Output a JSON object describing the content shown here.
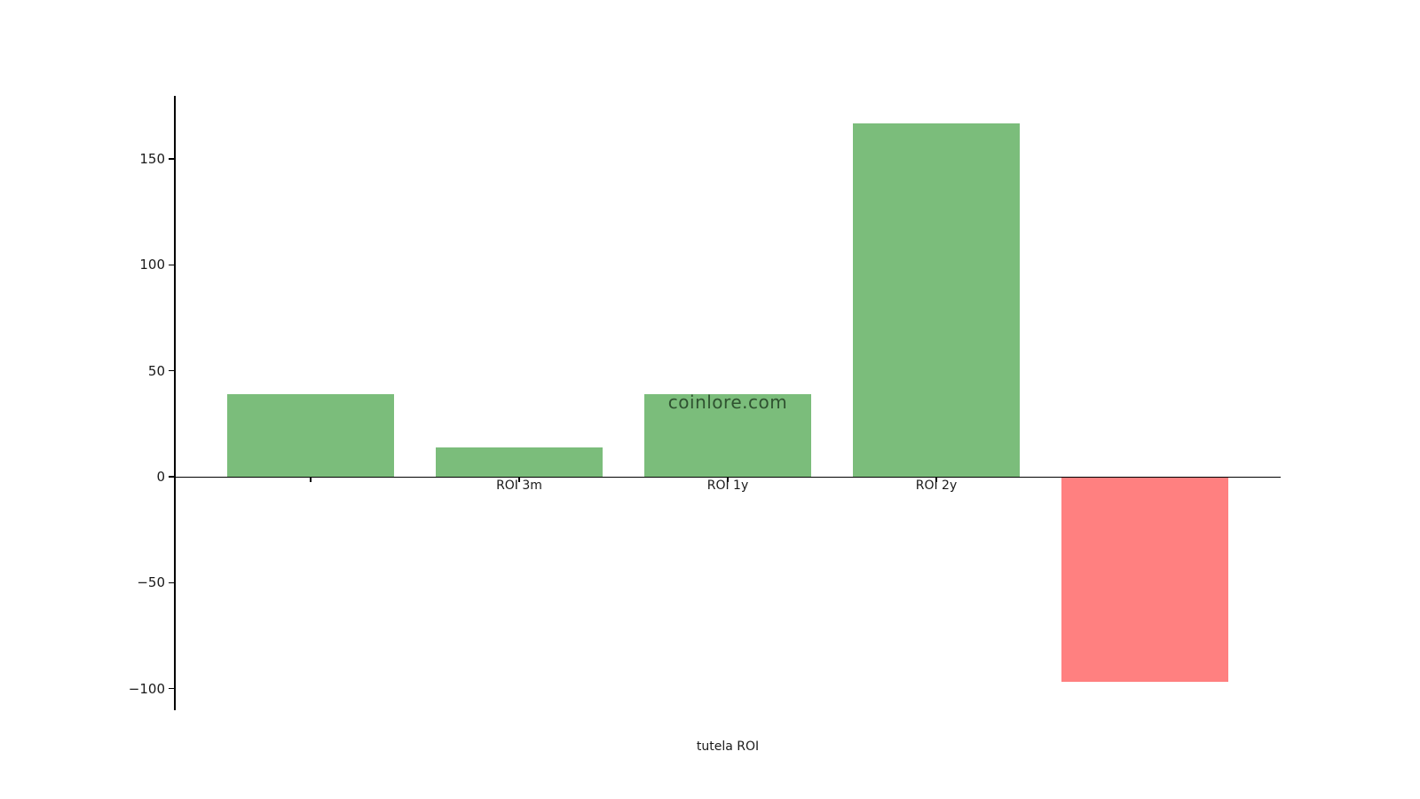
{
  "chart_data": {
    "type": "bar",
    "title": "",
    "xlabel": "tutela ROI",
    "ylabel": "",
    "watermark": "coinlore.com",
    "categories": [
      "",
      "ROI 3m",
      "ROI 1y",
      "ROI 2y",
      ""
    ],
    "values": [
      39,
      14,
      39,
      167,
      -97
    ],
    "yticks": [
      {
        "label": "150",
        "value": 150
      },
      {
        "label": "100",
        "value": 100
      },
      {
        "label": "50",
        "value": 50
      },
      {
        "label": "0",
        "value": 0
      },
      {
        "label": "−50",
        "value": -50
      },
      {
        "label": "−100",
        "value": -100
      }
    ],
    "ylim": [
      -110,
      180
    ],
    "grid": false,
    "legend": false,
    "colors": {
      "positive_bar": "#7bbd7b",
      "negative_bar": "#ff8080",
      "axis": "#000000",
      "tick_label": "#1a1a1a",
      "watermark": "#2f5230"
    }
  }
}
